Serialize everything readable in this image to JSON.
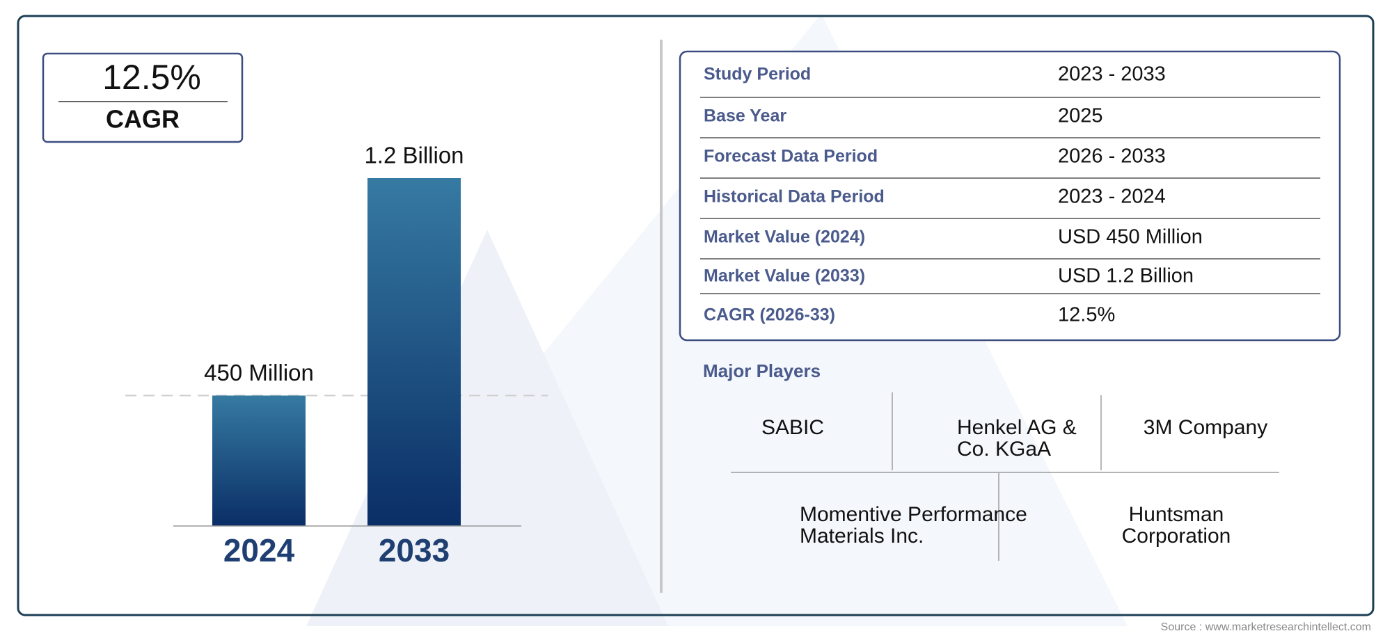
{
  "cagr_box": {
    "value": "12.5%",
    "label": "CAGR"
  },
  "chart_data": {
    "type": "bar",
    "categories": [
      "2024",
      "2033"
    ],
    "values": [
      450,
      1200
    ],
    "value_labels": [
      "450 Million",
      "1.2 Billion"
    ],
    "color": "#1b4f83"
  },
  "table": {
    "rows": [
      [
        "Study Period",
        "2023 - 2033"
      ],
      [
        "Base Year",
        "2025"
      ],
      [
        "Forecast Data Period",
        "2026 - 2033"
      ],
      [
        "Historical Data Period",
        "2023 - 2024"
      ],
      [
        "Market Value (2024)",
        "USD 450 Million"
      ],
      [
        "Market Value (2033)",
        "USD 1.2 Billion"
      ],
      [
        "CAGR (2026-33)",
        "12.5%"
      ]
    ]
  },
  "major_players": {
    "title": "Major Players",
    "items": [
      "SABIC",
      "Henkel AG & Co. KGaA",
      "3M Company",
      "Momentive Performance Materials Inc.",
      "Huntsman Corporation"
    ]
  },
  "source": "Source : www.marketresearchintellect.com"
}
